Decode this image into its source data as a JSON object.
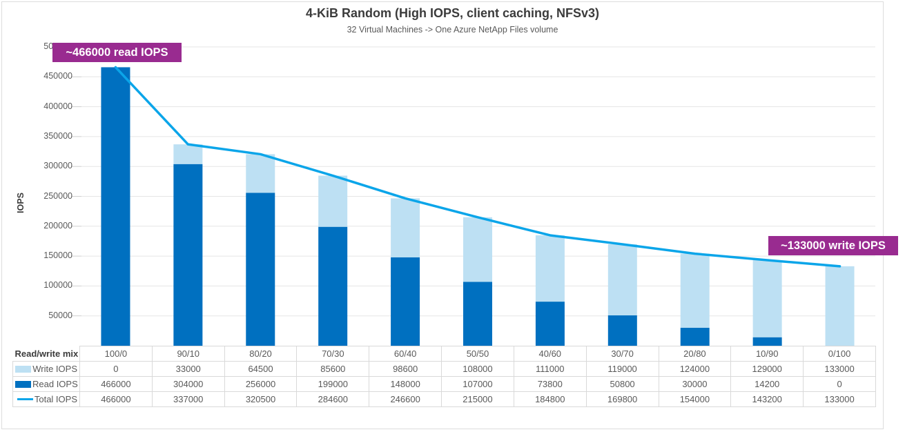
{
  "title": "4-KiB Random (High IOPS, client caching, NFSv3)",
  "subtitle": "32 Virtual Machines -> One Azure NetApp Files volume",
  "annotations": {
    "read_peak": "~466000 read IOPS",
    "write_peak": "~133000 write IOPS",
    "background_color": "#992B90",
    "text_color": "#FFFFFF"
  },
  "colors": {
    "read_bar": "#0070C0",
    "write_bar": "#BDE0F3",
    "total_line": "#0BA5E9",
    "gridline": "#E5E5E5",
    "tick": "#CFCFCF",
    "table_border": "#D9D9D9"
  },
  "chart_data": {
    "type": "bar",
    "subtype": "stacked-bars-with-total-line",
    "title": "4-KiB Random (High IOPS, client caching, NFSv3)",
    "subtitle": "32 Virtual Machines -> One Azure NetApp Files volume",
    "categories": [
      "100/0",
      "90/10",
      "80/20",
      "70/30",
      "60/40",
      "50/50",
      "40/60",
      "30/70",
      "20/80",
      "10/90",
      "0/100"
    ],
    "row_header": "Read/write mix",
    "series": [
      {
        "name": "Write IOPS",
        "type": "bar",
        "stack": "top",
        "color": "#BDE0F3",
        "values": [
          0,
          33000,
          64500,
          85600,
          98600,
          108000,
          111000,
          119000,
          124000,
          129000,
          133000
        ]
      },
      {
        "name": "Read IOPS",
        "type": "bar",
        "stack": "bottom",
        "color": "#0070C0",
        "values": [
          466000,
          304000,
          256000,
          199000,
          148000,
          107000,
          73800,
          50800,
          30000,
          14200,
          0
        ]
      },
      {
        "name": "Total IOPS",
        "type": "line",
        "color": "#0BA5E9",
        "values": [
          466000,
          337000,
          320500,
          284600,
          246600,
          215000,
          184800,
          169800,
          154000,
          143200,
          133000
        ]
      }
    ],
    "xlabel": "Read/write mix",
    "ylabel": "IOPS",
    "ylim": [
      0,
      500000
    ],
    "ytick_step": 50000,
    "grid": true,
    "legend_position": "table-left"
  }
}
